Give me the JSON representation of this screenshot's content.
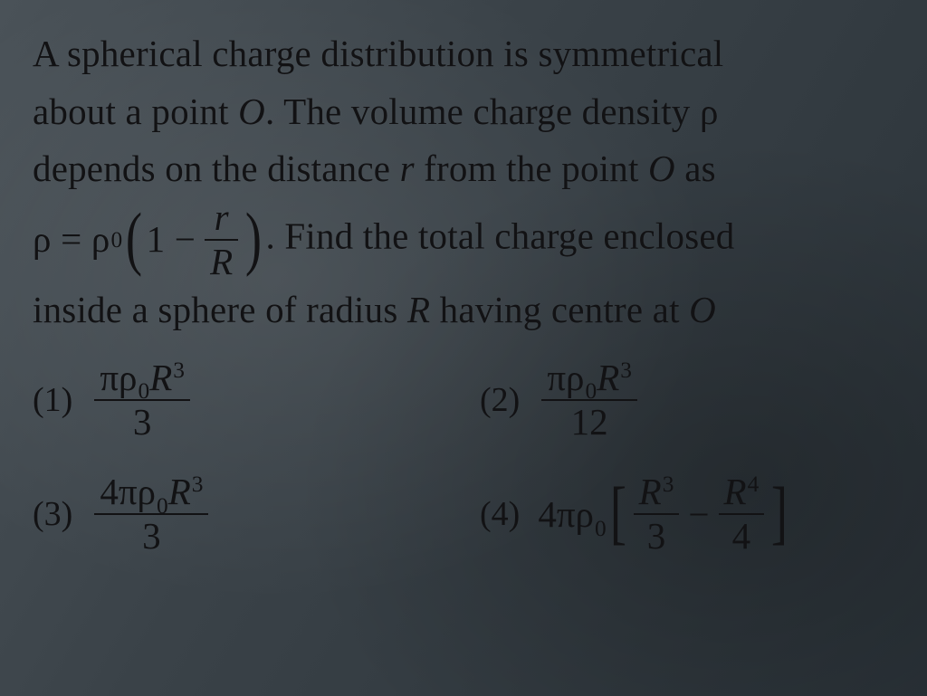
{
  "background": {
    "gradient_start": "#4a5258",
    "gradient_mid": "#3a4248",
    "gradient_end": "#2a3238",
    "text_color": "#121214",
    "rule_color": "#121214"
  },
  "typography": {
    "body_fontsize_pt": 31,
    "body_lineheight": 1.55,
    "font_family": "Times New Roman, serif",
    "sup_sub_scale": 0.62,
    "option_fontsize_pt": 31
  },
  "question": {
    "line1": "A spherical charge distribution is symmetrical",
    "line2_pre": "about a point ",
    "line2_O": "O",
    "line2_post": ". The volume charge density ρ",
    "line3_pre": "depends on the distance ",
    "line3_r": "r",
    "line3_mid": " from the point ",
    "line3_O": "O",
    "line3_post": " as",
    "line4_lhs": "ρ = ρ",
    "line4_sub0": "0",
    "line4_one_minus": "1 −",
    "line4_frac_num": "r",
    "line4_frac_den": "R",
    "line4_post": ". Find the total charge enclosed",
    "line5_pre": "inside a sphere of radius ",
    "line5_R": "R",
    "line5_mid": " having centre at ",
    "line5_O": "O"
  },
  "options": {
    "opt1": {
      "label": "(1)",
      "num_pi": "πρ",
      "num_sub": "0",
      "num_R": "R",
      "num_exp": "3",
      "den": "3"
    },
    "opt2": {
      "label": "(2)",
      "num_pi": "πρ",
      "num_sub": "0",
      "num_R": "R",
      "num_exp": "3",
      "den": "12"
    },
    "opt3": {
      "label": "(3)",
      "num_pre": "4πρ",
      "num_sub": "0",
      "num_R": "R",
      "num_exp": "3",
      "den": "3"
    },
    "opt4": {
      "label": "(4)",
      "coef": "4πρ",
      "coef_sub": "0",
      "term1_num": "R",
      "term1_exp": "3",
      "term1_den": "3",
      "minus": "−",
      "term2_num": "R",
      "term2_exp": "4",
      "term2_den": "4"
    }
  }
}
